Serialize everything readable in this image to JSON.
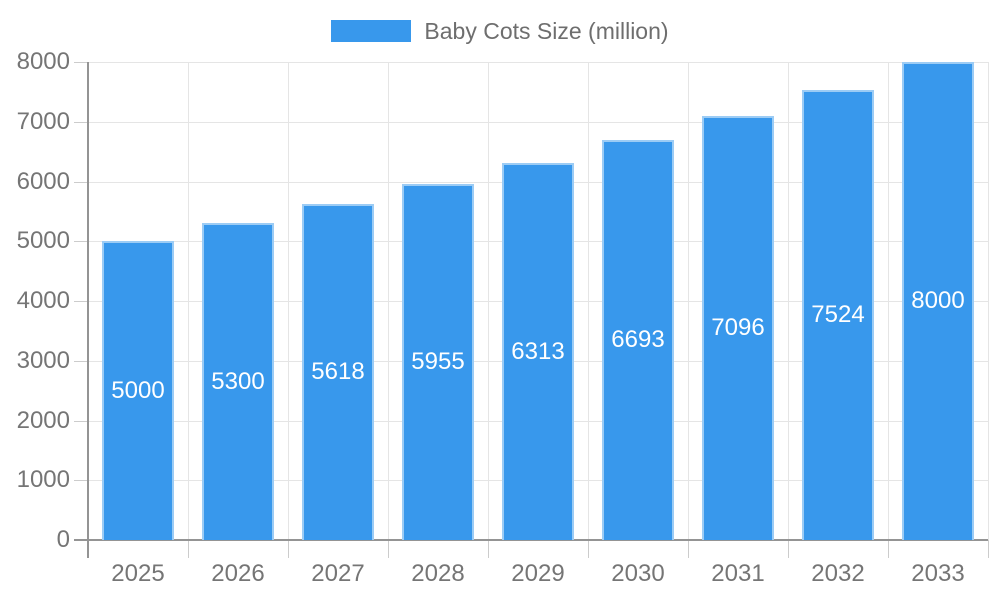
{
  "chart_data": {
    "type": "bar",
    "title": "",
    "legend": "Baby Cots Size (million)",
    "legend_position": "top",
    "categories": [
      "2025",
      "2026",
      "2027",
      "2028",
      "2029",
      "2030",
      "2031",
      "2032",
      "2033"
    ],
    "values": [
      5000,
      5300,
      5618,
      5955,
      6313,
      6693,
      7096,
      7524,
      8000
    ],
    "value_labels": [
      "5000",
      "5300",
      "5618",
      "5955",
      "6313",
      "6693",
      "7096",
      "7524",
      "8000"
    ],
    "xlabel": "",
    "ylabel": "",
    "ylim": [
      0,
      8000
    ],
    "yticks": [
      0,
      1000,
      2000,
      3000,
      4000,
      5000,
      6000,
      7000,
      8000
    ],
    "grid": true,
    "colors": {
      "bar_fill": "#3898EC",
      "bar_border": "#9CCCF5",
      "bar_label_text": "#FFFFFF",
      "gridline": "#E5E5E5",
      "axis_line": "#949494",
      "tick_mark": "#CCCCCC",
      "axis_text": "#757575",
      "legend_text": "#6E6E6E"
    }
  }
}
